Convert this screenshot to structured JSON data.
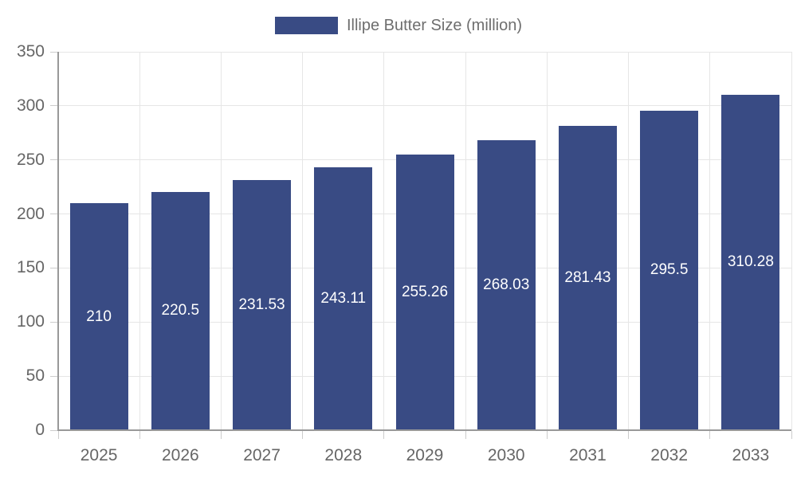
{
  "chart_data": {
    "type": "bar",
    "title": "",
    "xlabel": "",
    "ylabel": "",
    "categories": [
      "2025",
      "2026",
      "2027",
      "2028",
      "2029",
      "2030",
      "2031",
      "2032",
      "2033"
    ],
    "series": [
      {
        "name": "Illipe Butter Size (million)",
        "values": [
          210,
          220.5,
          231.53,
          243.11,
          255.26,
          268.03,
          281.43,
          295.5,
          310.28
        ],
        "value_labels": [
          "210",
          "220.5",
          "231.53",
          "243.11",
          "255.26",
          "268.03",
          "281.43",
          "295.5",
          "310.28"
        ]
      }
    ],
    "ylim": [
      0,
      350
    ],
    "ytick_interval": 50,
    "ytick_labels": [
      "0",
      "50",
      "100",
      "150",
      "200",
      "250",
      "300",
      "350"
    ],
    "grid": true,
    "legend_position": "top",
    "value_label_position": "inside-center",
    "colors": {
      "bar": "#394b84",
      "value_label": "#ffffff",
      "gridline": "#e6e6e6",
      "axis_line": "#999999",
      "tick": "#cccccc",
      "axis_text": "#666666",
      "legend_text": "#6e6e6e",
      "background": "#ffffff"
    }
  }
}
